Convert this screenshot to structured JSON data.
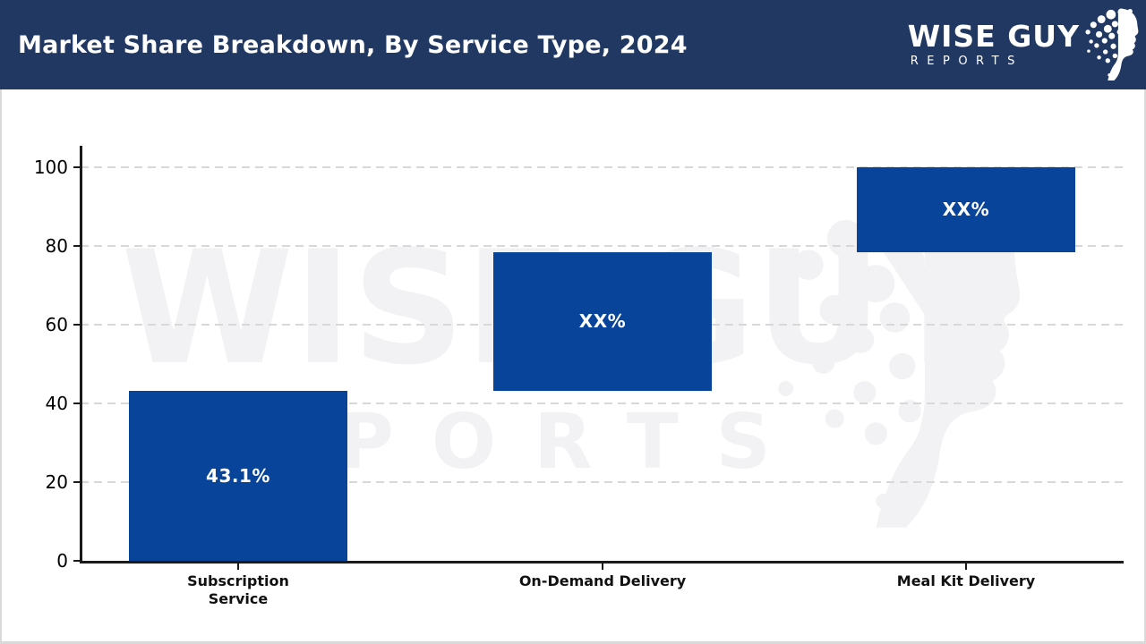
{
  "header": {
    "title": "Market Share Breakdown, By Service Type, 2024",
    "brand_line1": "WISE GUY",
    "brand_line2": "REPORTS"
  },
  "watermark": {
    "line1": "WISE GUY",
    "line2": "REPORTS"
  },
  "chart_data": {
    "type": "bar",
    "subtype": "waterfall-stacked-percentage",
    "title": "Market Share Breakdown, By Service Type, 2024",
    "categories": [
      "Subscription\nService",
      "On-Demand Delivery",
      "Meal Kit Delivery"
    ],
    "segments": [
      {
        "category": "Subscription Service",
        "start": 0,
        "end": 43.1,
        "label": "43.1%"
      },
      {
        "category": "On-Demand Delivery",
        "start": 43.1,
        "end": 78.5,
        "label": "XX%"
      },
      {
        "category": "Meal Kit Delivery",
        "start": 78.5,
        "end": 100,
        "label": "XX%"
      }
    ],
    "xlabel": "",
    "ylabel": "",
    "ylim": [
      0,
      105
    ],
    "yticks": [
      0,
      20,
      40,
      60,
      80,
      100
    ],
    "grid": "horizontal-dashed",
    "legend": "none",
    "bar_color": "#07449a",
    "bar_label_color": "#ffffff",
    "axis_color": "#1a1a1a",
    "grid_color": "#d8d8d8"
  },
  "colors": {
    "header_bg": "#213863",
    "card_border": "#d9d9d9",
    "watermark": "#f2f2f4"
  }
}
